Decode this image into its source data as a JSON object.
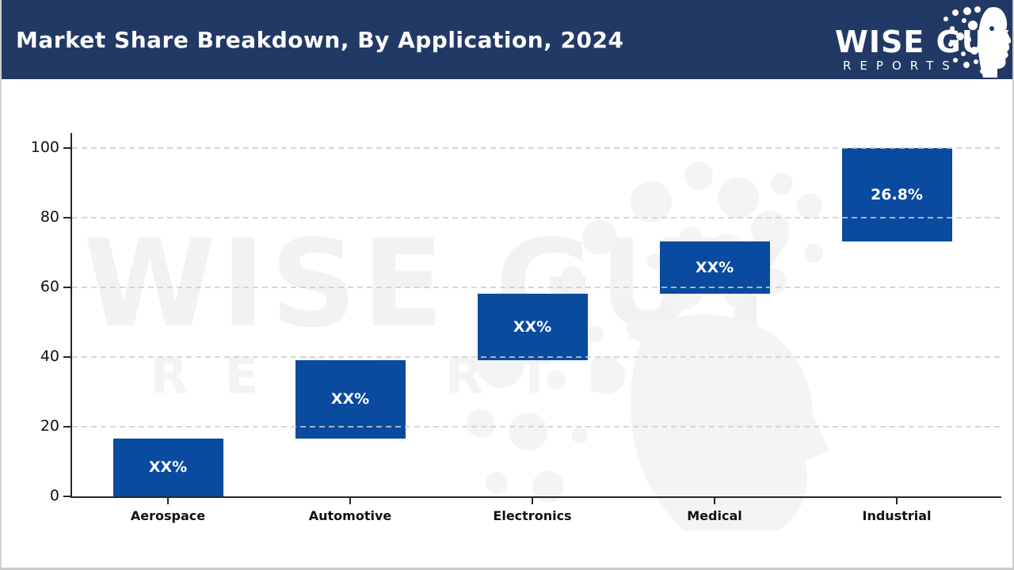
{
  "header": {
    "title": "Market Share Breakdown, By Application, 2024",
    "logo": {
      "wordmark": "WISE GUY",
      "sub": "REPORTS"
    }
  },
  "watermark": {
    "line1": "WISE GUY",
    "line2": "REPORTS"
  },
  "colors": {
    "header_bg": "#223966",
    "bar_blue": "#0a4a9f",
    "grid_gray": "#d9d9d9",
    "watermark_gray": "#f2f2f2"
  },
  "chart_data": {
    "type": "bar",
    "subtype": "waterfall-floating-bars",
    "title": "Market Share Breakdown, By Application, 2024",
    "xlabel": "",
    "ylabel": "",
    "ylim": [
      0,
      100
    ],
    "yticks": [
      0,
      20,
      40,
      60,
      80,
      100
    ],
    "grid": "horizontal-dashed",
    "legend": "none",
    "categories": [
      "Aerospace",
      "Automotive",
      "Electronics",
      "Medical",
      "Industrial"
    ],
    "segments": [
      {
        "category": "Aerospace",
        "start": 0,
        "end": 16.6,
        "label": "XX%"
      },
      {
        "category": "Automotive",
        "start": 16.6,
        "end": 39.2,
        "label": "XX%"
      },
      {
        "category": "Electronics",
        "start": 39.2,
        "end": 58.2,
        "label": "XX%"
      },
      {
        "category": "Medical",
        "start": 58.2,
        "end": 73.2,
        "label": "XX%"
      },
      {
        "category": "Industrial",
        "start": 73.2,
        "end": 100,
        "label": "26.8%"
      }
    ],
    "bar_color": "#0a4a9f"
  }
}
